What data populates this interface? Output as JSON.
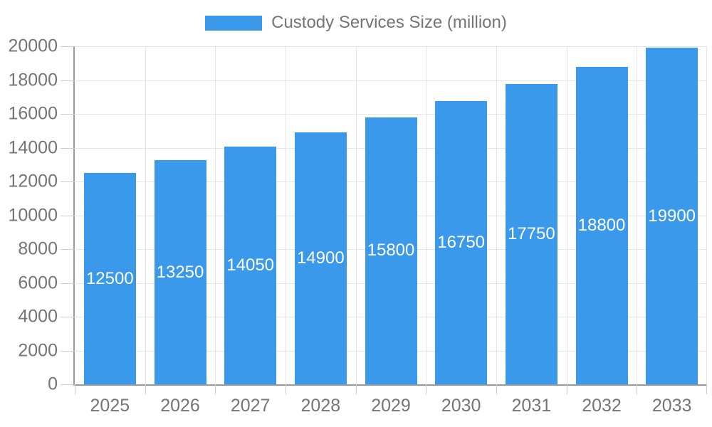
{
  "chart_data": {
    "type": "bar",
    "title": "Custody Services Size (million)",
    "legend_position": "top",
    "categories": [
      "2025",
      "2026",
      "2027",
      "2028",
      "2029",
      "2030",
      "2031",
      "2032",
      "2033"
    ],
    "values": [
      12500,
      13250,
      14050,
      14900,
      15800,
      16750,
      17750,
      18800,
      19900
    ],
    "data_labels_shown": true,
    "xlabel": "",
    "ylabel": "",
    "ylim": [
      0,
      20000
    ],
    "ytick_step": 2000,
    "yticks": [
      0,
      2000,
      4000,
      6000,
      8000,
      10000,
      12000,
      14000,
      16000,
      18000,
      20000
    ],
    "grid": true,
    "colors": {
      "bar": "#3b99ec",
      "bar_value_text": "#ffffff",
      "axis_line": "#9a9a9a",
      "gridline": "#e6e6e6",
      "tick_mark": "#cfcfcf",
      "axis_text": "#757575",
      "background": "#ffffff"
    }
  }
}
